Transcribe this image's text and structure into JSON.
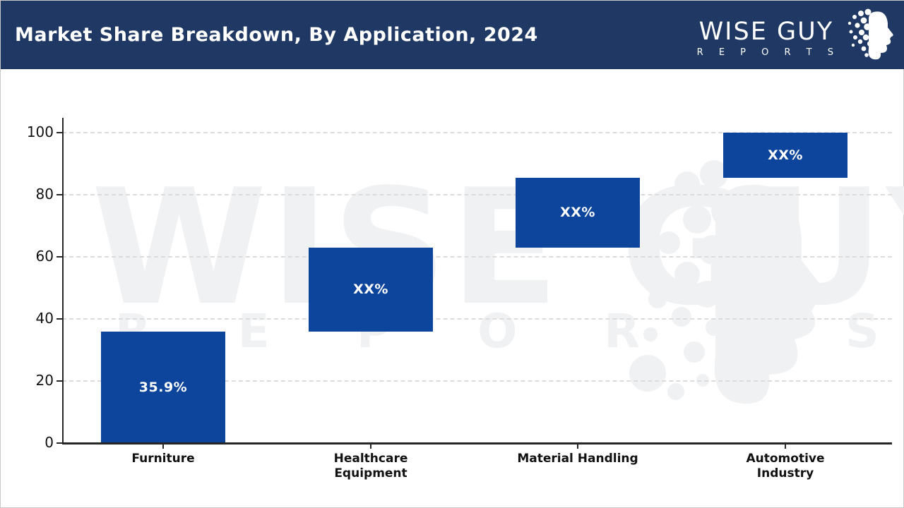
{
  "header": {
    "title": "Market Share Breakdown, By Application, 2024",
    "logo": {
      "name": "WISE GUY",
      "tagline": "R E P O R T S"
    }
  },
  "watermark": {
    "line1": "WISE GUY",
    "line2": "R E P O R T S"
  },
  "chart_data": {
    "type": "bar",
    "subtype": "floating-waterfall-bars",
    "title": "Market Share Breakdown, By Application, 2024",
    "categories": [
      "Furniture",
      "Healthcare Equipment",
      "Material Handling",
      "Automotive Industry"
    ],
    "category_display": [
      "Furniture",
      "Healthcare\nEquipment",
      "Material Handling",
      "Automotive\nIndustry"
    ],
    "segments": [
      {
        "category": "Furniture",
        "start": 0,
        "end": 35.9,
        "label": "35.9%"
      },
      {
        "category": "Healthcare Equipment",
        "start": 35.9,
        "end": 63.0,
        "label": "XX%"
      },
      {
        "category": "Material Handling",
        "start": 63.0,
        "end": 85.3,
        "label": "XX%"
      },
      {
        "category": "Automotive Industry",
        "start": 85.3,
        "end": 100,
        "label": "XX%"
      }
    ],
    "ylim": [
      0,
      100
    ],
    "yticks": [
      0,
      20,
      40,
      60,
      80,
      100
    ],
    "xlabel": "",
    "ylabel": "",
    "grid": "horizontal-dashed",
    "legend": "none",
    "bar_color": "#0d459c"
  },
  "colors": {
    "header_bg": "#1f3864",
    "bar": "#0d459c",
    "axis": "#262626",
    "grid": "#dcdcdc",
    "watermark": "#f0f1f3",
    "title_text": "#ffffff"
  }
}
